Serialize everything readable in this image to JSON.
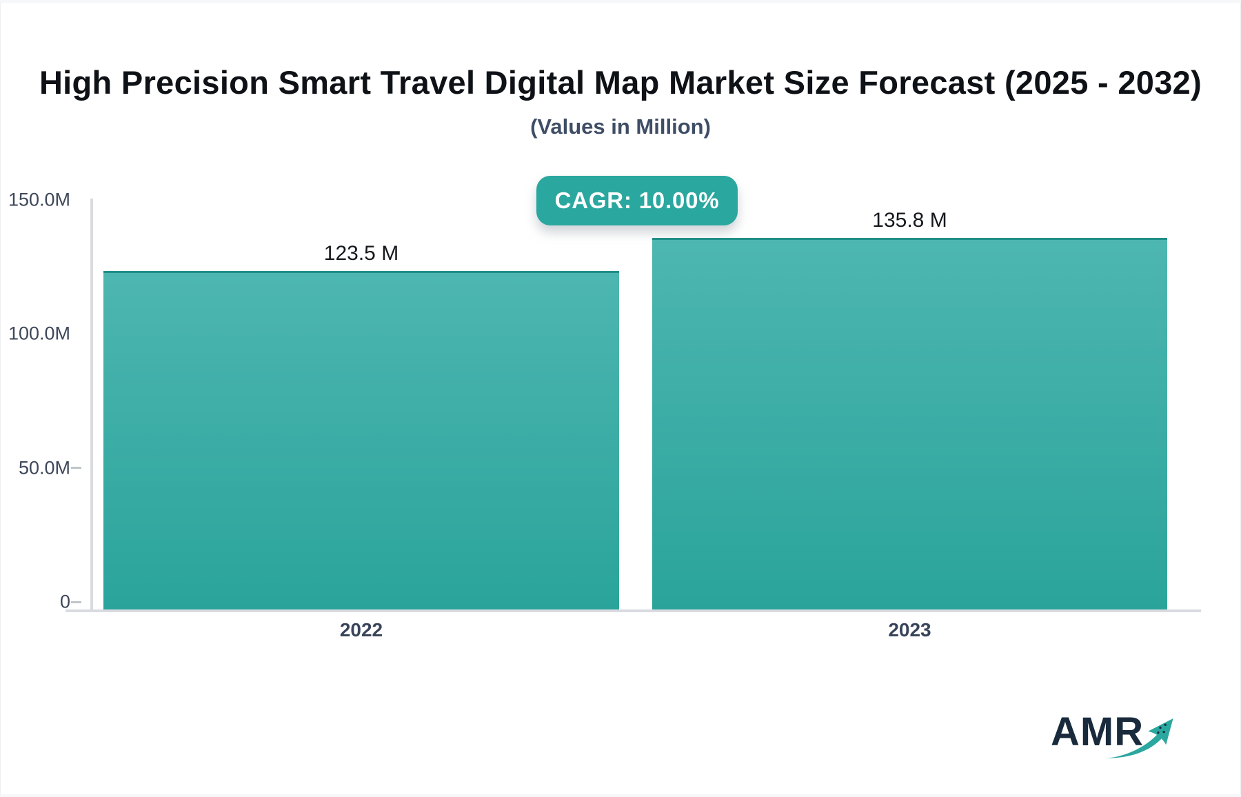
{
  "page": {
    "title": "High Precision Smart Travel Digital Map Market Size Forecast (2025 - 2032)",
    "subtitle": "(Values in Million)",
    "cagr_badge": "CAGR: 10.00%",
    "logo_text": "AMR"
  },
  "chart_data": {
    "type": "bar",
    "title": "High Precision Smart Travel Digital Map Market Size Forecast (2025 - 2032)",
    "subtitle": "(Values in Million)",
    "cagr": "CAGR: 10.00%",
    "unit": "Million",
    "categories": [
      "2022",
      "2023"
    ],
    "values": [
      123.5,
      135.8
    ],
    "value_labels": [
      "123.5 M",
      "135.8 M"
    ],
    "y_axis": {
      "range": [
        0,
        150
      ],
      "ticks": [
        {
          "label": "150.0M",
          "value": 150
        },
        {
          "label": "100.0M",
          "value": 100
        },
        {
          "label": "50.0M",
          "value": 50
        },
        {
          "label": "0",
          "value": 0
        }
      ]
    },
    "grid": false,
    "legend": false,
    "colors": {
      "title_text": "#0e1116",
      "subtitle_text": "#3f4d66",
      "badge_background": "#2aa79f",
      "bar_gradient_top": "#4db6b0",
      "bar_gradient_bottom": "#2aa49b",
      "bar_top_border": "#1f8e88",
      "axis_line": "#d9dbe0",
      "axis_label_text": "#3e4759",
      "category_label_text": "#38445a",
      "value_label_text": "#15181c",
      "logo_navy": "#182a3c",
      "logo_teal": "#2aa79e"
    }
  }
}
